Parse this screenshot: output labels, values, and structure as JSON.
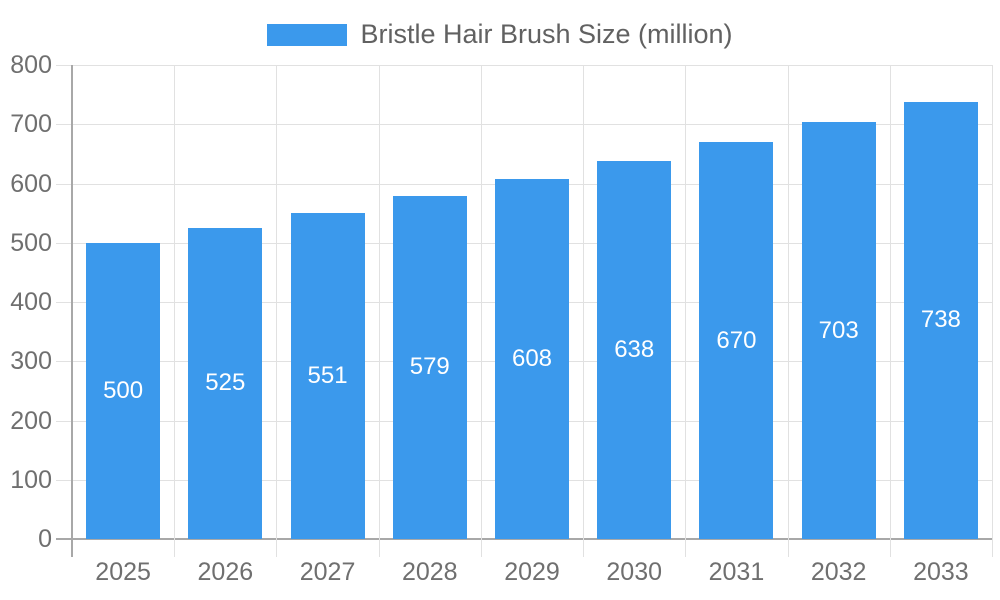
{
  "chart_data": {
    "type": "bar",
    "title": "",
    "xlabel": "",
    "ylabel": "",
    "categories": [
      "2025",
      "2026",
      "2027",
      "2028",
      "2029",
      "2030",
      "2031",
      "2032",
      "2033"
    ],
    "series": [
      {
        "name": "Bristle Hair Brush Size (million)",
        "values": [
          500,
          525,
          551,
          579,
          608,
          638,
          670,
          703,
          738
        ]
      }
    ],
    "value_labels_shown": true,
    "ylim": [
      0,
      800
    ],
    "ytick_step": 100,
    "ytick_labels": [
      "0",
      "100",
      "200",
      "300",
      "400",
      "500",
      "600",
      "700",
      "800"
    ],
    "grid": true,
    "legend_position": "top",
    "colors": {
      "bar": "#3b99ec",
      "grid_line": "#e1e1e1",
      "axis_line": "#a8a8a8",
      "axis_text": "#6f6f6f",
      "legend_text": "#616161",
      "value_label_text": "#ffffff",
      "background": "#ffffff"
    }
  }
}
